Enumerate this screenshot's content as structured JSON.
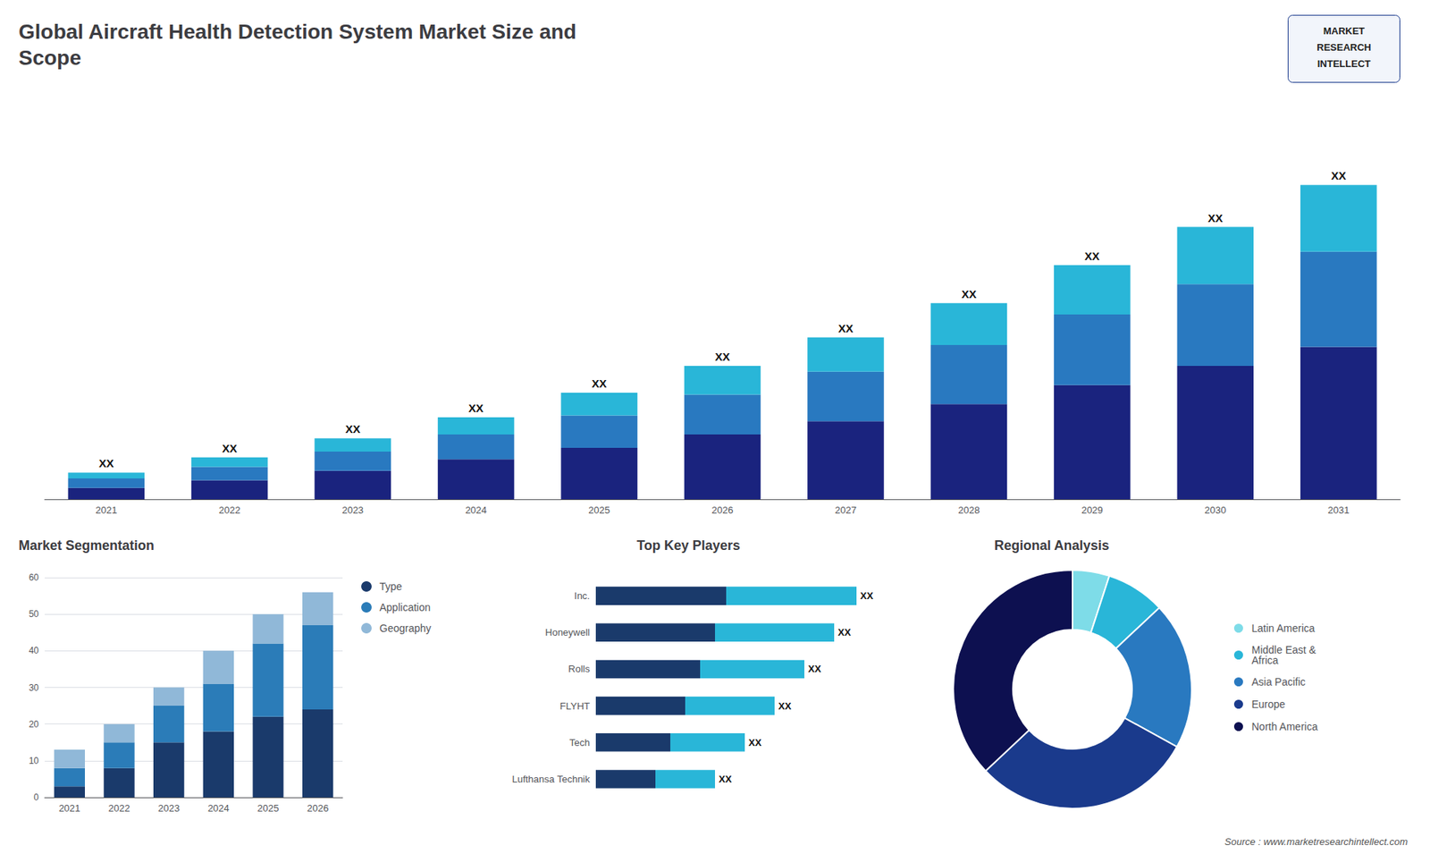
{
  "chart_data": [
    {
      "type": "bar",
      "title": "Global Aircraft Health Detection System Market Size and\nScope",
      "subtitle": "Source : www.marketresearchintellect.com",
      "categories": [
        "2021",
        "2022",
        "2023",
        "2024",
        "2025",
        "2026",
        "2027",
        "2028",
        "2029",
        "2030",
        "2031"
      ],
      "series": [
        {
          "color": "#1a237e",
          "values": [
            0.6,
            1.0,
            1.5,
            2.1,
            2.7,
            3.4,
            4.1,
            5.0,
            6.0,
            7.0,
            8.0
          ]
        },
        {
          "color": "#2979c0",
          "values": [
            0.5,
            0.7,
            1.0,
            1.3,
            1.7,
            2.1,
            2.6,
            3.1,
            3.7,
            4.3,
            5.0
          ]
        },
        {
          "color": "#29b6d8",
          "values": [
            0.3,
            0.5,
            0.7,
            0.9,
            1.2,
            1.5,
            1.8,
            2.2,
            2.6,
            3.0,
            3.5
          ]
        }
      ],
      "stacked": true,
      "ylim": [
        0,
        18
      ],
      "tick_labels": "x",
      "grid": false,
      "annotations": [
        {
          "text": "XX",
          "x": "2021"
        },
        {
          "text": "XX",
          "x": "2022"
        },
        {
          "text": "XX",
          "x": "2023"
        },
        {
          "text": "XX",
          "x": "2024"
        },
        {
          "text": "XX",
          "x": "2025"
        },
        {
          "text": "XX",
          "x": "2026"
        },
        {
          "text": "XX",
          "x": "2027"
        },
        {
          "text": "XX",
          "x": "2028"
        },
        {
          "text": "XX",
          "x": "2029"
        },
        {
          "text": "XX",
          "x": "2030"
        },
        {
          "text": "XX",
          "x": "2031"
        },
        {
          "text": "MARKET"
        },
        {
          "text": "RESEARCH"
        },
        {
          "text": "INTELLECT"
        }
      ]
    },
    {
      "type": "bar",
      "title": "Market Segmentation",
      "categories": [
        "2021",
        "2022",
        "2023",
        "2024",
        "2025",
        "2026"
      ],
      "series": [
        {
          "name": "Type",
          "color": "#1a3a6b",
          "values": [
            3,
            8,
            15,
            18,
            22,
            24
          ]
        },
        {
          "name": "Application",
          "color": "#2b7cb8",
          "values": [
            5,
            7,
            10,
            13,
            20,
            23
          ]
        },
        {
          "name": "Geography",
          "color": "#90b8d8",
          "values": [
            5,
            5,
            5,
            9,
            8,
            9
          ]
        }
      ],
      "stacked": true,
      "ylim": [
        0,
        60
      ],
      "yticks": [
        0,
        10,
        20,
        30,
        40,
        50,
        60
      ],
      "grid": true,
      "legend": "right"
    },
    {
      "type": "bar",
      "title": "Top Key Players",
      "orientation": "horizontal",
      "categories": [
        "Inc.",
        "Honeywell",
        "Rolls",
        "FLYHT",
        "Tech",
        "Lufthansa Technik"
      ],
      "series": [
        {
          "color": "#1a3a6b",
          "values": [
            3.5,
            3.2,
            2.8,
            2.4,
            2.0,
            1.6
          ]
        },
        {
          "color": "#29b6d8",
          "values": [
            3.5,
            3.2,
            2.8,
            2.4,
            2.0,
            1.6
          ]
        }
      ],
      "stacked": true,
      "xlim": [
        0,
        8
      ],
      "tick_labels": "y",
      "grid": false,
      "annotations": [
        {
          "text": "XX",
          "x": "Inc."
        },
        {
          "text": "XX",
          "x": "Honeywell"
        },
        {
          "text": "XX",
          "x": "Rolls"
        },
        {
          "text": "XX",
          "x": "FLYHT"
        },
        {
          "text": "XX",
          "x": "Tech"
        },
        {
          "text": "XX",
          "x": "Lufthansa Technik"
        }
      ]
    },
    {
      "type": "pie",
      "title": "Regional Analysis",
      "categories": [
        "Latin America",
        "Middle East &\nAfrica",
        "Asia Pacific",
        "Europe",
        "North America"
      ],
      "values": [
        5,
        8,
        20,
        30,
        37
      ],
      "colors": [
        "#7edce8",
        "#29b6d8",
        "#2979c0",
        "#1a3a8c",
        "#0d1050"
      ],
      "legend": "right"
    }
  ]
}
